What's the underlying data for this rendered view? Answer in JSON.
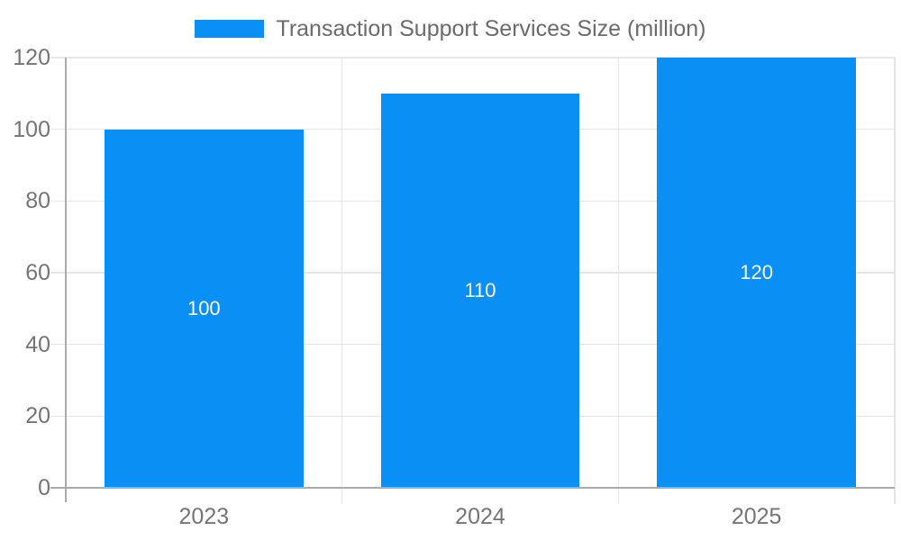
{
  "legend": {
    "label": "Transaction Support Services Size (million)"
  },
  "colors": {
    "bar": "#0a90f5",
    "grid": "#e6e6e6",
    "axis": "#ababab",
    "tick_label": "#757575",
    "legend_label": "#6b6b6b",
    "bar_label": "#ffffff",
    "background": "#ffffff"
  },
  "chart_data": {
    "type": "bar",
    "title": "Transaction Support Services Size (million)",
    "categories": [
      "2023",
      "2024",
      "2025"
    ],
    "values": [
      100,
      110,
      120
    ],
    "data_labels": [
      "100",
      "110",
      "120"
    ],
    "xlabel": "",
    "ylabel": "",
    "ylim": [
      0,
      120
    ],
    "yticks": [
      0,
      20,
      40,
      60,
      80,
      100,
      120
    ],
    "grid": true,
    "legend_position": "top-center",
    "bar_width_fraction": 0.72
  }
}
